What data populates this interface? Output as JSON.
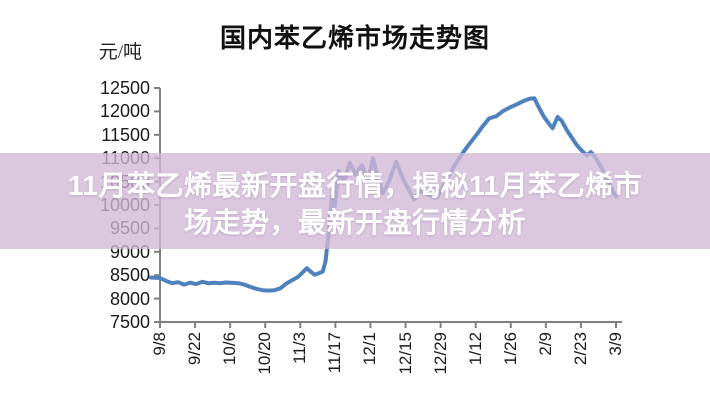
{
  "page": {
    "background": "#ffffff"
  },
  "overlay": {
    "line1": "11月苯乙烯最新开盘行情，揭秘11月苯乙烯市",
    "line2": "场走势，最新开盘行情分析",
    "background_rgba": "rgba(209,184,214,0.78)",
    "text_color": "#ffffff"
  },
  "chart_data": {
    "type": "line",
    "title": "国内苯乙烯市场走势图",
    "ylabel": "元/吨",
    "xlabel": "",
    "legend_position": "none",
    "grid": false,
    "line_color": "#4f81bd",
    "axis_color": "#7f7f7f",
    "ylim": [
      7500,
      12500
    ],
    "y_ticks": [
      12500,
      12000,
      11500,
      11000,
      10500,
      10000,
      9500,
      9000,
      8500,
      8000,
      7500
    ],
    "x_tick_labels": [
      "9/8",
      "9/22",
      "10/6",
      "10/20",
      "11/3",
      "11/17",
      "12/1",
      "12/15",
      "12/29",
      "1/12",
      "1/26",
      "2/9",
      "2/23",
      "3/9"
    ],
    "points_format": "[x_fraction_of_axis_from_9/8_to_3/9, price_yuan_per_ton]",
    "points": [
      [
        -0.02,
        8450
      ],
      [
        0,
        8440
      ],
      [
        0.013,
        8380
      ],
      [
        0.026,
        8330
      ],
      [
        0.04,
        8350
      ],
      [
        0.053,
        8300
      ],
      [
        0.066,
        8340
      ],
      [
        0.079,
        8310
      ],
      [
        0.093,
        8360
      ],
      [
        0.106,
        8330
      ],
      [
        0.119,
        8340
      ],
      [
        0.132,
        8330
      ],
      [
        0.145,
        8345
      ],
      [
        0.159,
        8335
      ],
      [
        0.172,
        8330
      ],
      [
        0.185,
        8300
      ],
      [
        0.198,
        8250
      ],
      [
        0.211,
        8210
      ],
      [
        0.225,
        8180
      ],
      [
        0.238,
        8170
      ],
      [
        0.251,
        8180
      ],
      [
        0.264,
        8220
      ],
      [
        0.278,
        8330
      ],
      [
        0.291,
        8400
      ],
      [
        0.302,
        8460
      ],
      [
        0.313,
        8560
      ],
      [
        0.322,
        8650
      ],
      [
        0.33,
        8580
      ],
      [
        0.339,
        8510
      ],
      [
        0.348,
        8540
      ],
      [
        0.357,
        8580
      ],
      [
        0.363,
        8800
      ],
      [
        0.37,
        9400
      ],
      [
        0.377,
        10180
      ],
      [
        0.383,
        9960
      ],
      [
        0.392,
        10730
      ],
      [
        0.403,
        10480
      ],
      [
        0.416,
        10900
      ],
      [
        0.429,
        10650
      ],
      [
        0.443,
        10850
      ],
      [
        0.456,
        10500
      ],
      [
        0.467,
        11000
      ],
      [
        0.478,
        10550
      ],
      [
        0.489,
        10250
      ],
      [
        0.502,
        10500
      ],
      [
        0.518,
        10920
      ],
      [
        0.531,
        10600
      ],
      [
        0.544,
        10350
      ],
      [
        0.557,
        10120
      ],
      [
        0.57,
        10300
      ],
      [
        0.584,
        10240
      ],
      [
        0.597,
        10190
      ],
      [
        0.608,
        10170
      ],
      [
        0.621,
        10400
      ],
      [
        0.634,
        10650
      ],
      [
        0.65,
        10900
      ],
      [
        0.663,
        11100
      ],
      [
        0.678,
        11300
      ],
      [
        0.694,
        11500
      ],
      [
        0.709,
        11700
      ],
      [
        0.722,
        11850
      ],
      [
        0.738,
        11900
      ],
      [
        0.751,
        12000
      ],
      [
        0.766,
        12080
      ],
      [
        0.782,
        12150
      ],
      [
        0.797,
        12220
      ],
      [
        0.81,
        12270
      ],
      [
        0.821,
        12280
      ],
      [
        0.83,
        12100
      ],
      [
        0.841,
        11900
      ],
      [
        0.852,
        11750
      ],
      [
        0.861,
        11640
      ],
      [
        0.872,
        11880
      ],
      [
        0.881,
        11800
      ],
      [
        0.892,
        11600
      ],
      [
        0.903,
        11440
      ],
      [
        0.914,
        11280
      ],
      [
        0.925,
        11160
      ],
      [
        0.936,
        11060
      ],
      [
        0.945,
        11130
      ],
      [
        0.954,
        11030
      ],
      [
        0.965,
        10850
      ],
      [
        0.974,
        10680
      ],
      [
        0.983,
        10500
      ],
      [
        0.991,
        10330
      ],
      [
        1,
        10180
      ]
    ]
  }
}
